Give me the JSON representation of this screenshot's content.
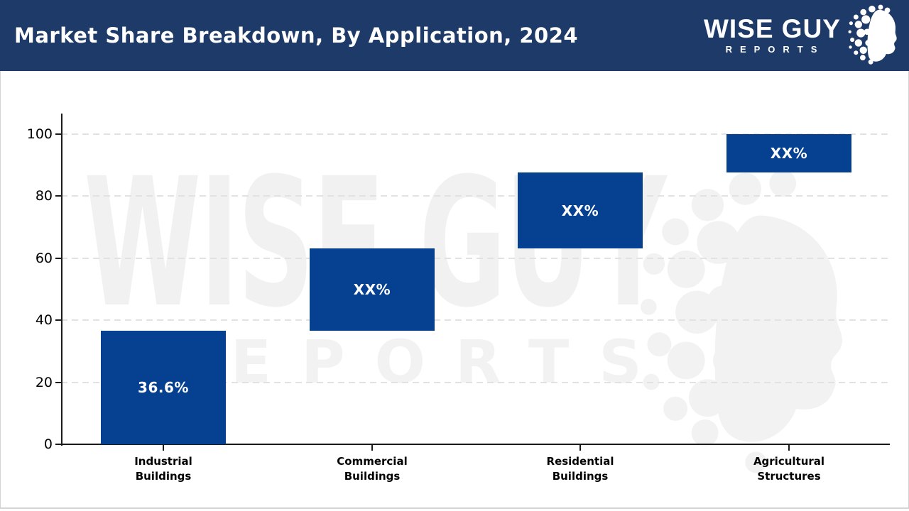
{
  "header": {
    "title": "Market Share Breakdown, By Application, 2024",
    "bg_color": "#1e3a68",
    "logo": {
      "line1": "WISE GUY",
      "line2": "REPORTS"
    }
  },
  "watermark": {
    "line1": "WISE GUY",
    "line2": "REPORTS"
  },
  "chart_data": {
    "type": "bar",
    "variant": "waterfall",
    "title": "Market Share Breakdown, By Application, 2024",
    "categories": [
      "Industrial Buildings",
      "Commercial Buildings",
      "Residential Buildings",
      "Agricultural Structures"
    ],
    "category_lines": [
      [
        "Industrial",
        "Buildings"
      ],
      [
        "Commercial",
        "Buildings"
      ],
      [
        "Residential",
        "Buildings"
      ],
      [
        "Agricultural",
        "Structures"
      ]
    ],
    "segments": [
      {
        "category": "Industrial Buildings",
        "start": 0,
        "end": 36.6,
        "label": "36.6%"
      },
      {
        "category": "Commercial Buildings",
        "start": 36.6,
        "end": 63.0,
        "label": "XX%"
      },
      {
        "category": "Residential Buildings",
        "start": 63.0,
        "end": 87.5,
        "label": "XX%"
      },
      {
        "category": "Agricultural Structures",
        "start": 87.5,
        "end": 100.0,
        "label": "XX%"
      }
    ],
    "ylim": [
      0,
      100
    ],
    "yticks": [
      0,
      20,
      40,
      60,
      80,
      100
    ],
    "xlabel": "",
    "ylabel": "",
    "grid": "horizontal-dashed",
    "legend": "none",
    "bar_color": "#064191",
    "bar_label_color": "#ffffff"
  }
}
